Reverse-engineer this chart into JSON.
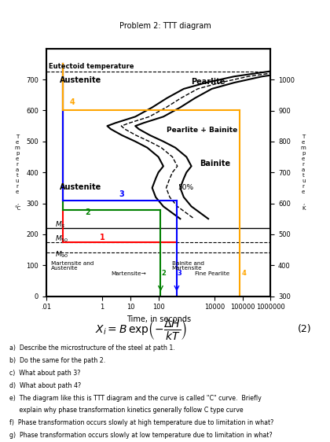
{
  "title": "Eutectoid temperature",
  "xlabel": "Time, in seconds",
  "xlim": [
    0.01,
    1000000
  ],
  "ylim_C": [
    0,
    800
  ],
  "ylim_K": [
    300,
    1100
  ],
  "eutectoid_T": 727,
  "Ms_T": 220,
  "M50_T": 175,
  "M90_T": 140,
  "path_colors": [
    "red",
    "green",
    "blue",
    "orange"
  ],
  "c_curve_start_T": [
    727,
    710,
    690,
    670,
    640,
    610,
    580,
    560,
    550,
    540,
    520,
    500,
    480,
    450,
    420,
    400,
    380,
    350,
    320,
    290,
    270,
    250
  ],
  "c_curve_start_t": [
    1000000,
    50000,
    5000,
    800,
    200,
    60,
    15,
    3,
    1.5,
    2,
    5,
    15,
    40,
    100,
    150,
    100,
    80,
    60,
    80,
    150,
    300,
    600
  ],
  "c_curve_finish_T": [
    727,
    710,
    690,
    670,
    640,
    610,
    580,
    560,
    550,
    540,
    520,
    500,
    480,
    450,
    420,
    400,
    380,
    350,
    320,
    290,
    270,
    250
  ],
  "c_curve_finish_t": [
    10000000,
    500000,
    50000,
    8000,
    2000,
    600,
    150,
    30,
    15,
    20,
    50,
    150,
    400,
    1000,
    1500,
    1000,
    800,
    600,
    800,
    1500,
    3000,
    6000
  ],
  "xtick_vals": [
    0.01,
    1,
    10,
    100,
    10000,
    100000,
    1000000
  ],
  "xtick_labels": [
    ".01",
    "1",
    "10",
    "100",
    "10000",
    "100000",
    "1000000"
  ],
  "ytick_C": [
    0,
    100,
    200,
    300,
    400,
    500,
    600,
    700
  ],
  "ytick_K": [
    300,
    400,
    500,
    600,
    700,
    800,
    900,
    1000
  ],
  "questions": [
    "a)  Describe the microstructure of the steel at path 1.",
    "b)  Do the same for the path 2.",
    "c)  What about path 3?",
    "d)  What about path 4?",
    "e)  The diagram like this is TTT diagram and the curve is called \"C\" curve.  Briefly",
    "     explain why phase transformation kinetics generally follow C type curve",
    "f)  Phase transformation occurs slowly at high temperature due to limitation in what?",
    "g)  Phase transformation occurs slowly at low temperature due to limitation in what?"
  ]
}
